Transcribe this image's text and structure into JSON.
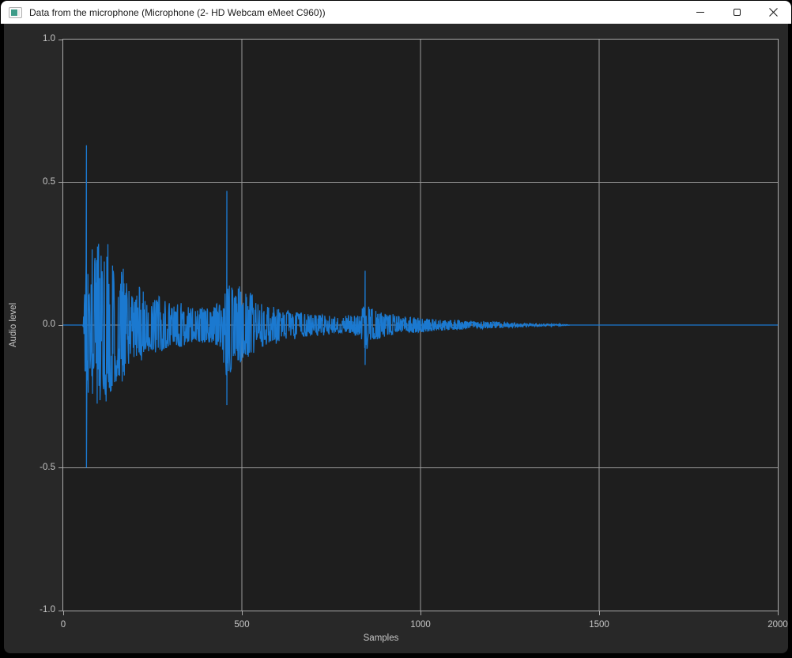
{
  "window": {
    "title": "Data from the microphone (Microphone (2- HD Webcam eMeet C960))",
    "controls": {
      "minimize_label": "Minimize",
      "maximize_label": "Maximize",
      "close_label": "Close"
    },
    "titlebar_bg": "#ffffff",
    "icon_accent": "#3d9b88"
  },
  "figure": {
    "background": "#282828",
    "axes_background": "#1e1e1e",
    "spine_color": "#a9a9a9",
    "grid_color": "#9a9a9a",
    "tick_label_color": "#c6c6c6"
  },
  "chart_data": {
    "type": "line",
    "series_name": "microphone audio waveform",
    "title": "",
    "xlabel": "Samples",
    "ylabel": "Audio level",
    "xlim": [
      0,
      2000
    ],
    "ylim": [
      -1.0,
      1.0
    ],
    "grid": true,
    "legend": "none",
    "line_color": "#1b79d0",
    "xticks": [
      {
        "v": 0,
        "label": "0"
      },
      {
        "v": 500,
        "label": "500"
      },
      {
        "v": 1000,
        "label": "1000"
      },
      {
        "v": 1500,
        "label": "1500"
      },
      {
        "v": 2000,
        "label": "2000"
      }
    ],
    "yticks": [
      {
        "v": 1.0,
        "label": "1.0"
      },
      {
        "v": 0.5,
        "label": "0.5"
      },
      {
        "v": 0.0,
        "label": "0.0"
      },
      {
        "v": -0.5,
        "label": "-0.5"
      },
      {
        "v": -1.0,
        "label": "-1.0"
      }
    ],
    "spikes": [
      {
        "x": 65,
        "top": 0.63,
        "bottom": -0.5
      },
      {
        "x": 458,
        "top": 0.47,
        "bottom": -0.28
      },
      {
        "x": 845,
        "top": 0.19,
        "bottom": -0.14
      }
    ],
    "envelope": [
      [
        0,
        0
      ],
      [
        55,
        0
      ],
      [
        58,
        0.05
      ],
      [
        63,
        0.3
      ],
      [
        68,
        0.3
      ],
      [
        75,
        0.24
      ],
      [
        85,
        0.32
      ],
      [
        95,
        0.3
      ],
      [
        110,
        0.26
      ],
      [
        125,
        0.3
      ],
      [
        140,
        0.22
      ],
      [
        155,
        0.18
      ],
      [
        165,
        0.22
      ],
      [
        180,
        0.14
      ],
      [
        200,
        0.12
      ],
      [
        215,
        0.15
      ],
      [
        230,
        0.1
      ],
      [
        250,
        0.09
      ],
      [
        270,
        0.11
      ],
      [
        290,
        0.08
      ],
      [
        310,
        0.07
      ],
      [
        330,
        0.08
      ],
      [
        355,
        0.06
      ],
      [
        380,
        0.06
      ],
      [
        400,
        0.07
      ],
      [
        420,
        0.06
      ],
      [
        440,
        0.09
      ],
      [
        450,
        0.14
      ],
      [
        456,
        0.18
      ],
      [
        462,
        0.2
      ],
      [
        470,
        0.16
      ],
      [
        480,
        0.13
      ],
      [
        495,
        0.14
      ],
      [
        510,
        0.11
      ],
      [
        525,
        0.12
      ],
      [
        540,
        0.09
      ],
      [
        560,
        0.08
      ],
      [
        580,
        0.06
      ],
      [
        600,
        0.07
      ],
      [
        620,
        0.05
      ],
      [
        650,
        0.05
      ],
      [
        680,
        0.04
      ],
      [
        710,
        0.04
      ],
      [
        740,
        0.035
      ],
      [
        770,
        0.03
      ],
      [
        800,
        0.035
      ],
      [
        830,
        0.04
      ],
      [
        842,
        0.08
      ],
      [
        850,
        0.09
      ],
      [
        860,
        0.06
      ],
      [
        880,
        0.05
      ],
      [
        900,
        0.04
      ],
      [
        920,
        0.04
      ],
      [
        950,
        0.03
      ],
      [
        980,
        0.03
      ],
      [
        1010,
        0.025
      ],
      [
        1050,
        0.02
      ],
      [
        1100,
        0.018
      ],
      [
        1150,
        0.012
      ],
      [
        1200,
        0.012
      ],
      [
        1250,
        0.008
      ],
      [
        1300,
        0.006
      ],
      [
        1350,
        0.004
      ],
      [
        1400,
        0.002
      ],
      [
        1430,
        0
      ],
      [
        2000,
        0
      ]
    ],
    "noise_seed": 1337
  }
}
